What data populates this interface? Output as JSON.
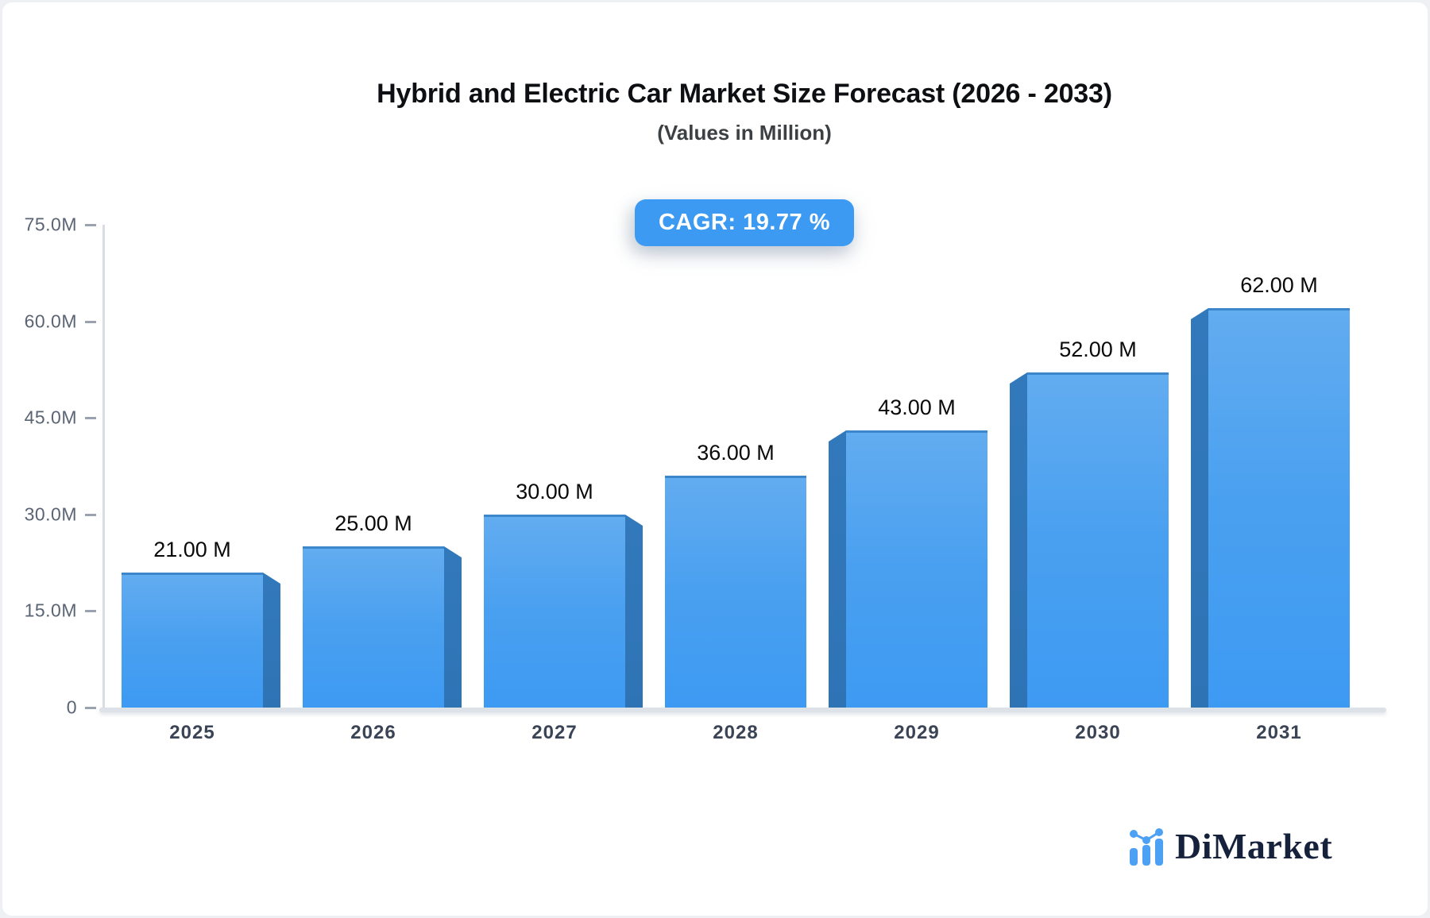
{
  "header": {
    "title": "Hybrid and Electric Car Market Size Forecast (2026 - 2033)",
    "subtitle": "(Values in Million)",
    "badge": "CAGR: 19.77 %"
  },
  "chart_data": {
    "type": "bar",
    "title": "Hybrid and Electric Car Market Size Forecast (2026 - 2033)",
    "subtitle": "(Values in Million)",
    "annotation": "CAGR: 19.77 %",
    "categories": [
      "2025",
      "2026",
      "2027",
      "2028",
      "2029",
      "2030",
      "2031"
    ],
    "values": [
      21,
      25,
      30,
      36,
      43,
      52,
      62
    ],
    "value_labels": [
      "21.00 M",
      "25.00 M",
      "30.00 M",
      "36.00 M",
      "43.00 M",
      "52.00 M",
      "62.00 M"
    ],
    "xlabel": "",
    "ylabel": "",
    "ylim": [
      0,
      75
    ],
    "yticks": [
      {
        "value": 75,
        "label": "75.0M"
      },
      {
        "value": 60,
        "label": "60.0M"
      },
      {
        "value": 45,
        "label": "45.0M"
      },
      {
        "value": 30,
        "label": "30.0M"
      },
      {
        "value": 15,
        "label": "15.0M"
      },
      {
        "value": 0,
        "label": "0"
      }
    ],
    "grid": false,
    "legend": false,
    "unit": "Million",
    "colors": {
      "bar_face_top": "#62ACF0",
      "bar_face_bottom": "#3D9AF2",
      "bar_side": "#2E74B5",
      "badge_background": "#3D9AF2",
      "badge_text": "#FFFFFF",
      "axis_line": "#dde1e8",
      "tick_label": "#5a6474",
      "category_label": "#3a4456"
    }
  },
  "branding": {
    "logo_text": "DiMarket",
    "logo_icon": "bar-line-chart-logo-icon",
    "logo_color": "#4DA1F4",
    "logo_text_color": "#16213c"
  }
}
